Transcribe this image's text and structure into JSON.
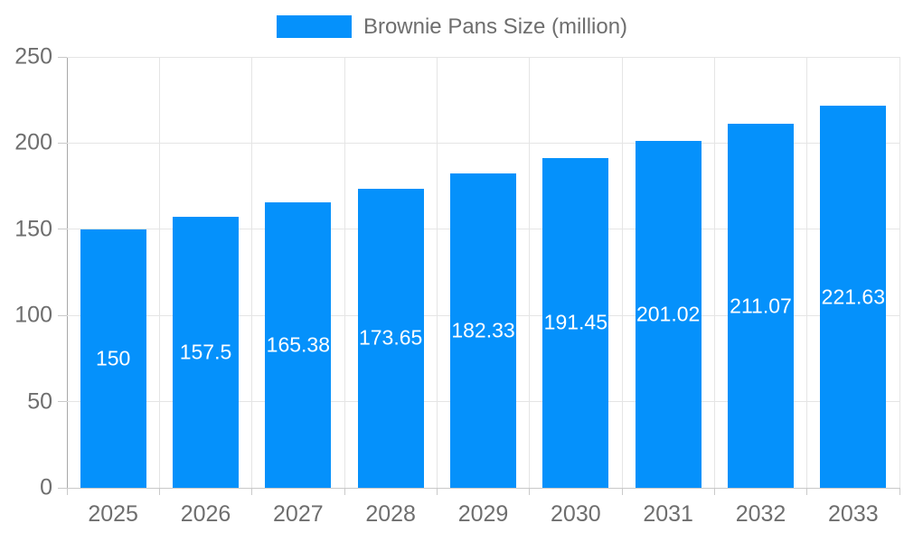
{
  "chart_data": {
    "type": "bar",
    "title": "Brownie Pans Size (million)",
    "legend": [
      {
        "label": "Brownie Pans Size (million)",
        "color": "#0591fb"
      }
    ],
    "legend_position": "top",
    "categories": [
      "2025",
      "2026",
      "2027",
      "2028",
      "2029",
      "2030",
      "2031",
      "2032",
      "2033"
    ],
    "series": [
      {
        "name": "Brownie Pans Size (million)",
        "values": [
          150,
          157.5,
          165.38,
          173.65,
          182.33,
          191.45,
          201.02,
          211.07,
          221.63
        ],
        "value_labels": [
          "150",
          "157.5",
          "165.38",
          "173.65",
          "182.33",
          "191.45",
          "201.02",
          "211.07",
          "221.63"
        ]
      }
    ],
    "xlabel": "",
    "ylabel": "",
    "ylim": [
      0,
      250
    ],
    "yticks": [
      0,
      50,
      100,
      150,
      200,
      250
    ],
    "grid": true,
    "colors": {
      "bar": "#0591fb",
      "bar_label_text": "#ffffff",
      "axis_text": "#6e6e6e",
      "gridline": "#e5e5e5",
      "axis_line": "#a8a8a8",
      "tick": "#c9c9c9",
      "background": "#ffffff"
    }
  }
}
